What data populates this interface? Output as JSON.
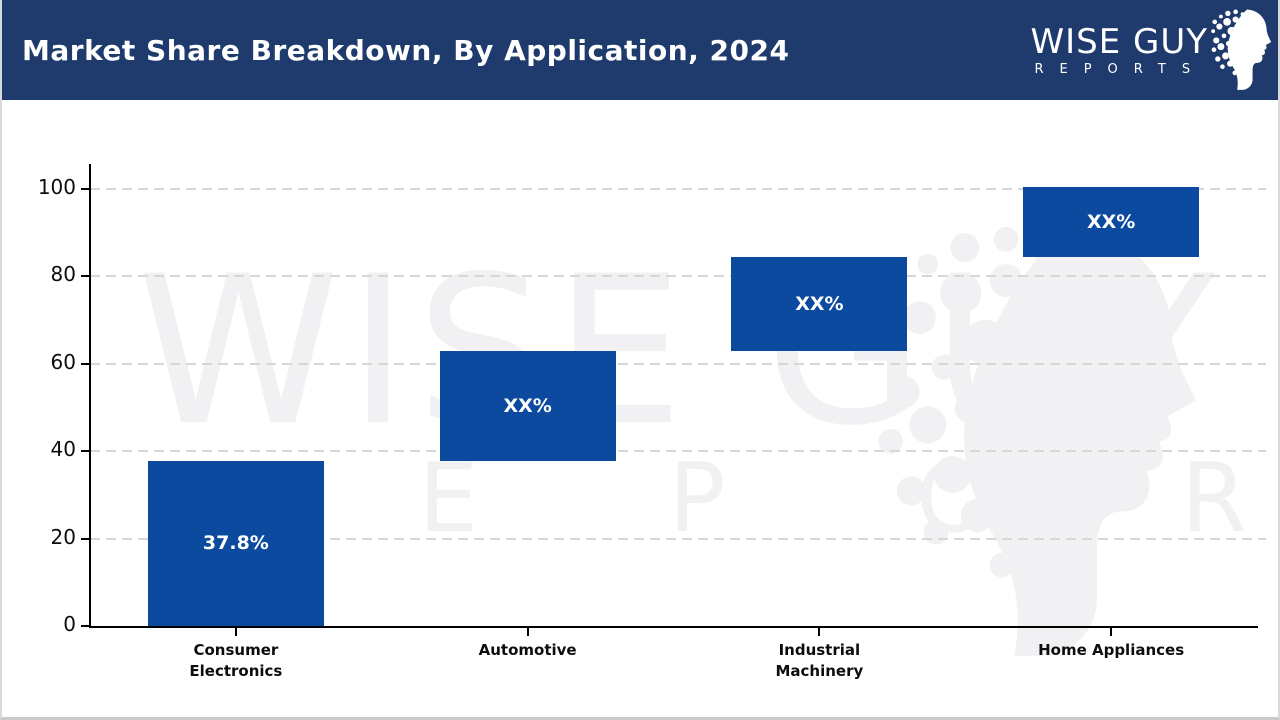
{
  "header": {
    "title": "Market Share Breakdown, By Application, 2024",
    "bg_color": "#1f3a6d",
    "logo": {
      "line1": "WISE GUY",
      "line2": "REPORTS",
      "head_icon": "dotted-head-profile"
    }
  },
  "watermark": {
    "line1": "WISE GUY",
    "line2": "R E P O R T S",
    "head_icon": "dotted-head-profile",
    "color": "#f1f1f4"
  },
  "chart_data": {
    "type": "bar",
    "subtype": "floating-segment-waterfall",
    "title": "Market Share Breakdown, By Application, 2024",
    "categories": [
      "Consumer\nElectronics",
      "Automotive",
      "Industrial\nMachinery",
      "Home Appliances"
    ],
    "segments": [
      {
        "category": "Consumer Electronics",
        "start": 0,
        "end": 37.8,
        "label": "37.8%"
      },
      {
        "category": "Automotive",
        "start": 37.8,
        "end": 62.9,
        "label": "XX%"
      },
      {
        "category": "Industrial Machinery",
        "start": 62.9,
        "end": 84.3,
        "label": "XX%"
      },
      {
        "category": "Home Appliances",
        "start": 84.3,
        "end": 100.3,
        "label": "XX%"
      }
    ],
    "y_ticks": [
      0,
      20,
      40,
      60,
      80,
      100
    ],
    "ylim": [
      0,
      105
    ],
    "xlabel": "",
    "ylabel": "",
    "bar_color": "#0b4a9f",
    "label_color": "#ffffff",
    "grid": "horizontal-dashed",
    "grid_color": "#d7d7d7",
    "axis_color": "#000000",
    "legend": "none"
  }
}
